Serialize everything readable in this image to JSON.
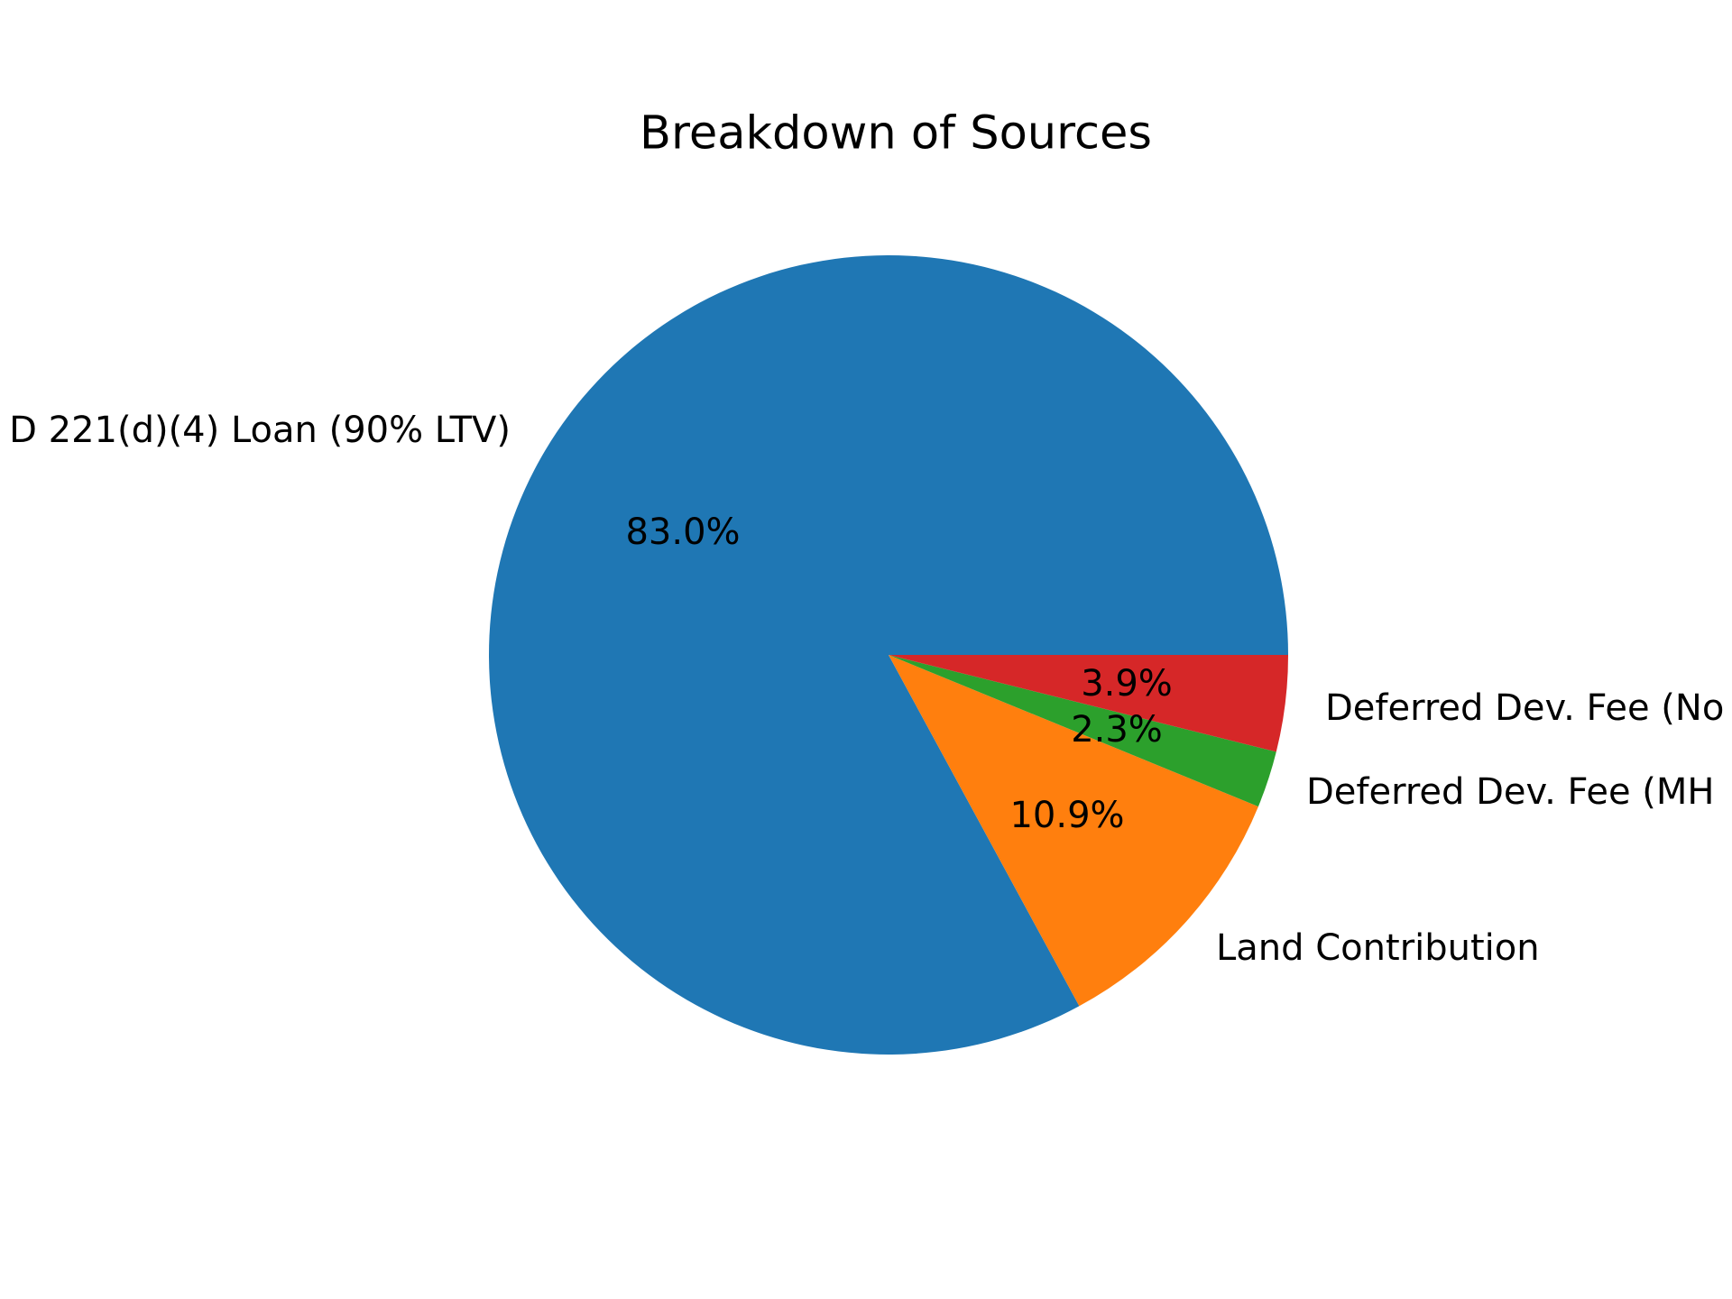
{
  "title": "Breakdown of Sources",
  "chart_data": {
    "type": "pie",
    "title": "Breakdown of Sources",
    "direction": "counterclockwise",
    "start_angle_deg": 0,
    "pct_distance": 0.6,
    "label_distance": 1.1,
    "legend": "none",
    "slices": [
      {
        "label": "D 221(d)(4) Loan (90% LTV)",
        "value": 83.0,
        "pct_text": "83.0%",
        "color": "#1f77b4"
      },
      {
        "label": "Land Contribution",
        "value": 10.9,
        "pct_text": "10.9%",
        "color": "#ff7f0e"
      },
      {
        "label": "Deferred Dev. Fee (MH",
        "value": 2.3,
        "pct_text": "2.3%",
        "color": "#2ca02c"
      },
      {
        "label": "Deferred Dev. Fee (No",
        "value": 3.9,
        "pct_text": "3.9%",
        "color": "#d62728"
      }
    ]
  }
}
